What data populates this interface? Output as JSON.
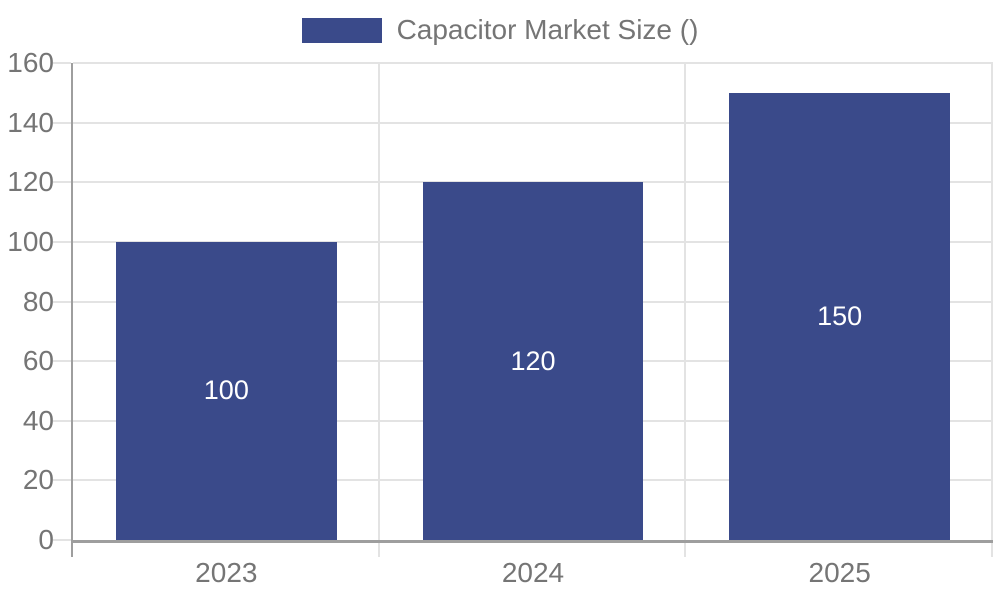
{
  "colors": {
    "bar": "#3A4A8A",
    "text": "#757575",
    "grid": "#E3E3E3",
    "axis": "#9E9E9E",
    "bar_label": "#FFFFFF",
    "background": "#FFFFFF"
  },
  "chart_data": {
    "type": "bar",
    "title": "Capacitor Market Size ()",
    "categories": [
      "2023",
      "2024",
      "2025"
    ],
    "series": [
      {
        "name": "Capacitor Market Size ()",
        "values": [
          100,
          120,
          150
        ],
        "data_labels": [
          "100",
          "120",
          "150"
        ],
        "color": "#3A4A8A"
      }
    ],
    "ylim": [
      0,
      160
    ],
    "yticks": [
      0,
      20,
      40,
      60,
      80,
      100,
      120,
      140,
      160
    ],
    "xlabel": "",
    "ylabel": "",
    "grid": true,
    "legend_position": "top-center",
    "bar_width_fraction": 0.72
  }
}
